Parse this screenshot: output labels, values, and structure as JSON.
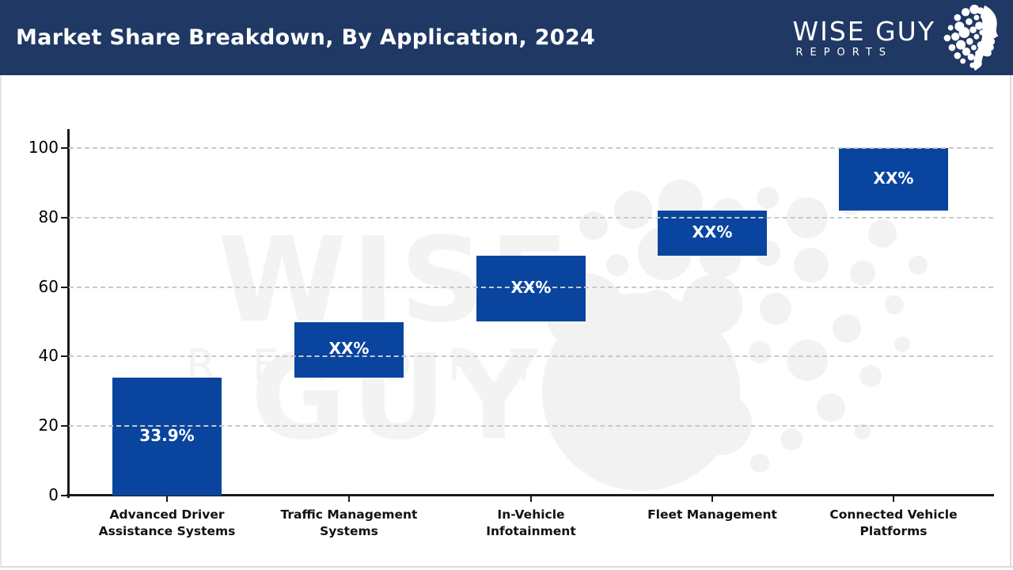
{
  "header": {
    "title": "Market Share Breakdown, By Application, 2024",
    "logo": {
      "wordmark": "WISE GUY",
      "subtext": "REPORTS"
    }
  },
  "watermark": {
    "line1": "WISE GUY",
    "line2": "REPORTS"
  },
  "chart_data": {
    "type": "bar",
    "variant": "waterfall",
    "title": "Market Share Breakdown, By Application, 2024",
    "categories": [
      [
        "Advanced Driver",
        "Assistance Systems"
      ],
      [
        "Traffic Management",
        "Systems"
      ],
      [
        "In-Vehicle",
        "Infotainment"
      ],
      [
        "Fleet Management"
      ],
      [
        "Connected Vehicle",
        "Platforms"
      ]
    ],
    "segments": [
      {
        "start": 0,
        "end": 33.9,
        "label": "33.9%"
      },
      {
        "start": 33.9,
        "end": 50,
        "label": "XX%"
      },
      {
        "start": 50,
        "end": 69,
        "label": "XX%"
      },
      {
        "start": 69,
        "end": 82,
        "label": "XX%"
      },
      {
        "start": 82,
        "end": 100,
        "label": "XX%"
      }
    ],
    "xlabel": "",
    "ylabel": "",
    "ylim": [
      0,
      100
    ],
    "yticks": [
      0,
      20,
      40,
      60,
      80,
      100
    ],
    "grid": "horizontal-dashed",
    "legend": "none",
    "bar_color": "#09459e",
    "bar_label_color": "#ffffff",
    "axis_color": "#1a1a1a",
    "grid_color": "#c9c9c9"
  }
}
